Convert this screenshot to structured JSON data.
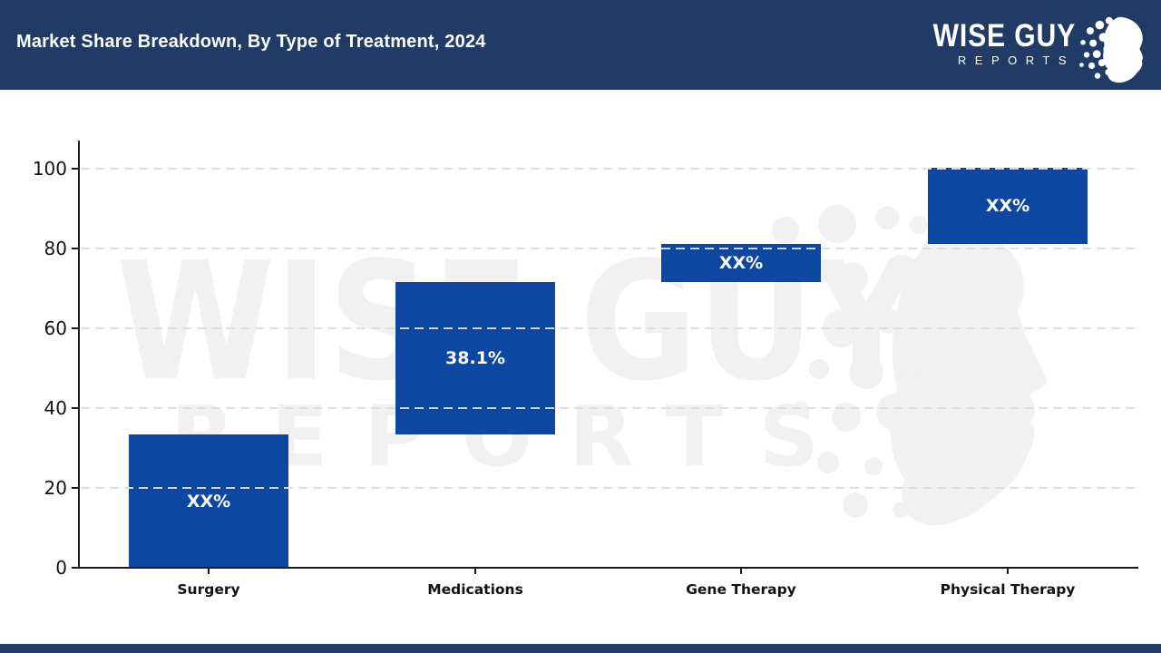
{
  "header": {
    "title": "Market Share Breakdown, By Type of Treatment, 2024",
    "logo": {
      "line1": "WISE GUY",
      "line2": "REPORTS"
    }
  },
  "watermark": {
    "line1": "WISE GUY",
    "line2": "REPORTS"
  },
  "chart_data": {
    "type": "bar",
    "subtype": "floating-segment waterfall of market share",
    "title": "Market Share Breakdown, By Type of Treatment, 2024",
    "categories": [
      "Surgery",
      "Medications",
      "Gene Therapy",
      "Physical Therapy"
    ],
    "segments": [
      {
        "category": "Surgery",
        "start": 0,
        "end": 33.3,
        "label": "XX%"
      },
      {
        "category": "Medications",
        "start": 33.4,
        "end": 71.5,
        "label": "38.1%"
      },
      {
        "category": "Gene Therapy",
        "start": 71.6,
        "end": 81.1,
        "label": "XX%"
      },
      {
        "category": "Physical Therapy",
        "start": 81.1,
        "end": 100.2,
        "label": "XX%"
      }
    ],
    "yticks": [
      0,
      20,
      40,
      60,
      80,
      100
    ],
    "ylim": [
      0,
      107
    ],
    "grid": "horizontal dashed, drawn above bars",
    "legend": "none",
    "bar_color": "#0d47a1",
    "value_label_color": "#ffffff"
  },
  "colors": {
    "header_bg": "#213a66",
    "footer_bg": "#213a66",
    "bar": "#0d47a1",
    "watermark": "#f1f1f4",
    "grid": "#dddddd",
    "axis": "#1c1c1c",
    "tick_text": "#141414"
  }
}
